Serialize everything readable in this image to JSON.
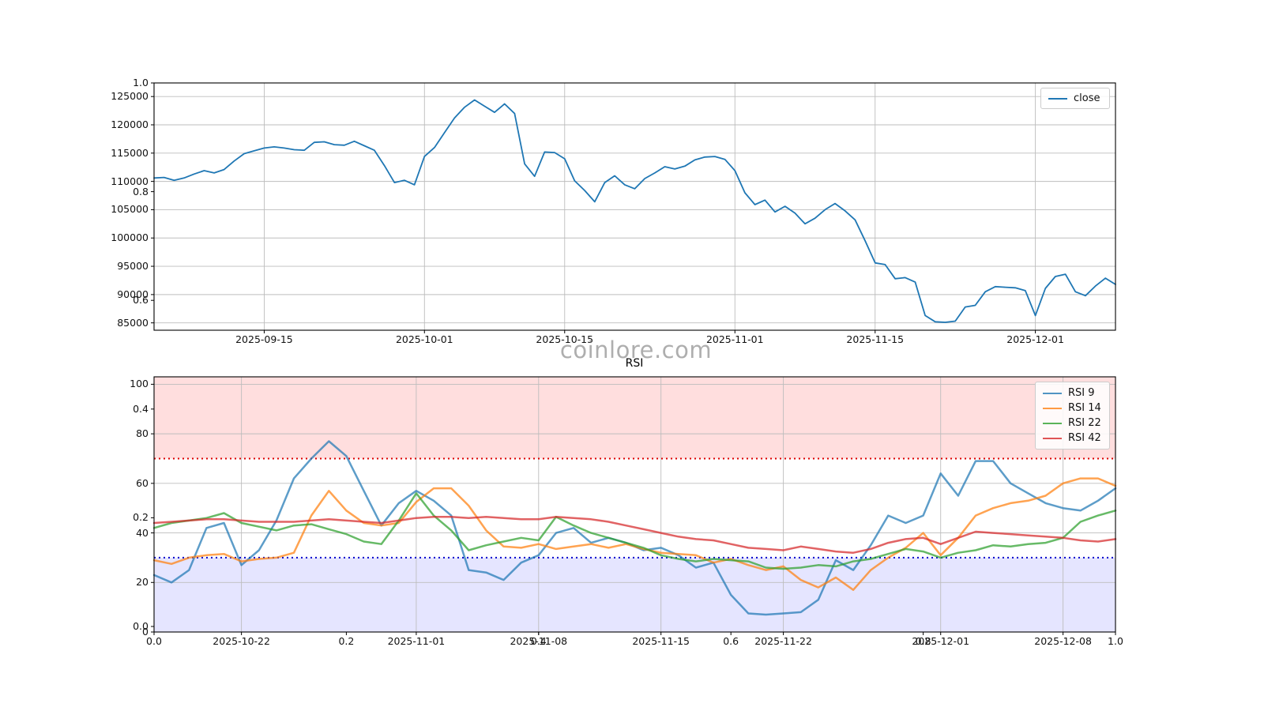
{
  "watermark": "coinlore.com",
  "price_chart": {
    "legend": {
      "close": "close"
    },
    "y_tick_labels": [
      "125000",
      "120000",
      "115000",
      "110000",
      "105000",
      "100000",
      "95000",
      "90000",
      "85000"
    ],
    "x_tick_labels": [
      "2025-09-15",
      "2025-10-01",
      "2025-10-15",
      "2025-11-01",
      "2025-11-15",
      "2025-12-01"
    ]
  },
  "rsi_chart": {
    "title": "RSI",
    "legend_labels": [
      "RSI 9",
      "RSI 14",
      "RSI 22",
      "RSI 42"
    ],
    "y_tick_labels": [
      "100",
      "80",
      "60",
      "40",
      "20",
      "0"
    ],
    "x_tick_labels": [
      "2025-10-22",
      "2025-11-01",
      "2025-11-08",
      "2025-11-15",
      "2025-11-22",
      "2025-12-01",
      "2025-12-08"
    ]
  },
  "overlay_axis": {
    "x_tick_labels": [
      "0.0",
      "0.2",
      "0.4",
      "0.6",
      "0.8",
      "1.0"
    ],
    "y_tick_labels": [
      "1.0",
      "0.8",
      "0.6",
      "0.4",
      "0.2",
      "0.0"
    ]
  },
  "colors": {
    "close_line": "#1f77b4",
    "rsi9": "#1f77b4",
    "rsi14": "#ff7f0e",
    "rsi22": "#2ca02c",
    "rsi42": "#d62728",
    "overbought_band": "rgba(255,0,0,0.13)",
    "oversold_band": "rgba(0,0,255,0.10)",
    "overbought_line": "#dd0000",
    "oversold_line": "#0000cc",
    "grid": "#bdbdbd"
  },
  "chart_data": [
    {
      "type": "line",
      "name": "close-price",
      "x_start": "2025-09-04",
      "x_end": "2025-12-09",
      "ylim": [
        83700,
        127400
      ],
      "y_ticks": [
        85000,
        90000,
        95000,
        100000,
        105000,
        110000,
        115000,
        120000,
        125000
      ],
      "x_ticks": [
        "2025-09-15",
        "2025-10-01",
        "2025-10-15",
        "2025-11-01",
        "2025-11-15",
        "2025-12-01"
      ],
      "grid": true,
      "legend_position": "upper right",
      "series": [
        {
          "name": "close",
          "color": "#1f77b4",
          "alpha": 1.0,
          "width": 1.8,
          "values": [
            110600,
            110700,
            110200,
            110600,
            111300,
            111900,
            111500,
            112100,
            113600,
            114900,
            115400,
            115900,
            116100,
            115900,
            115600,
            115500,
            116900,
            117000,
            116500,
            116400,
            117100,
            116300,
            115500,
            112800,
            109800,
            110200,
            109400,
            114400,
            116000,
            118600,
            121200,
            123100,
            124400,
            123300,
            122200,
            123700,
            122000,
            113100,
            110900,
            115200,
            115100,
            114000,
            110100,
            108400,
            106400,
            109800,
            111000,
            109400,
            108700,
            110500,
            111500,
            112600,
            112200,
            112700,
            113800,
            114300,
            114400,
            113900,
            111900,
            108000,
            105900,
            106700,
            104600,
            105600,
            104400,
            102500,
            103500,
            105000,
            106100,
            104800,
            103200,
            99500,
            95600,
            95300,
            92800,
            93000,
            92200,
            86300,
            85200,
            85100,
            85300,
            87800,
            88100,
            90500,
            91400,
            91300,
            91200,
            90700,
            86300,
            91100,
            93200,
            93600,
            90500,
            89800,
            91500,
            92900,
            91800
          ]
        }
      ]
    },
    {
      "type": "line",
      "name": "rsi",
      "title": "RSI",
      "x_start": "2025-10-17",
      "x_end": "2025-12-11",
      "ylim": [
        0,
        103
      ],
      "y_ticks": [
        0,
        20,
        40,
        60,
        80,
        100
      ],
      "x_ticks": [
        "2025-10-22",
        "2025-11-01",
        "2025-11-08",
        "2025-11-15",
        "2025-11-22",
        "2025-12-01",
        "2025-12-08"
      ],
      "grid": true,
      "legend_position": "upper right",
      "bands": [
        {
          "from": 70,
          "to": 103,
          "color": "rgba(255,0,0,0.13)",
          "meaning": "overbought"
        },
        {
          "from": 0,
          "to": 30,
          "color": "rgba(0,0,255,0.10)",
          "meaning": "oversold"
        }
      ],
      "hlines": [
        {
          "y": 70,
          "color": "#dd0000",
          "style": "dotted"
        },
        {
          "y": 30,
          "color": "#0000cc",
          "style": "dotted"
        }
      ],
      "series": [
        {
          "name": "RSI 9",
          "color": "#1f77b4",
          "alpha": 0.72,
          "width": 2.5,
          "values": [
            23,
            20,
            25,
            42,
            44,
            27,
            33,
            45,
            62,
            70,
            77,
            71,
            57,
            43,
            52,
            57,
            53,
            47,
            25,
            24,
            21,
            28,
            31,
            40,
            42,
            36,
            38,
            36,
            33,
            34,
            31,
            26,
            28,
            15,
            7.5,
            7,
            7.5,
            8,
            13,
            29,
            25,
            35,
            47,
            44,
            47,
            64,
            55,
            69,
            69,
            60,
            56,
            52,
            50,
            49,
            53,
            58
          ]
        },
        {
          "name": "RSI 14",
          "color": "#ff7f0e",
          "alpha": 0.72,
          "width": 2.5,
          "values": [
            29,
            27.5,
            30,
            31,
            31.5,
            28.5,
            29.5,
            30,
            32,
            47,
            57,
            49,
            44,
            43,
            44,
            52.5,
            58,
            58,
            51,
            41,
            34.5,
            34,
            35.5,
            33.5,
            34.5,
            35.5,
            34,
            35.5,
            33.5,
            32,
            31.5,
            31,
            28,
            29.5,
            27,
            25,
            26.5,
            21,
            18,
            22,
            17,
            25,
            30,
            34,
            40,
            31,
            38,
            47,
            50,
            52,
            53,
            55,
            60,
            62,
            62,
            59
          ]
        },
        {
          "name": "RSI 22",
          "color": "#2ca02c",
          "alpha": 0.72,
          "width": 2.5,
          "values": [
            42,
            44,
            45,
            46,
            48,
            44,
            42.5,
            41,
            43,
            43.5,
            41.5,
            39.5,
            36.5,
            35.5,
            45,
            56,
            47,
            41,
            33,
            35,
            36.5,
            38,
            37,
            46.5,
            43,
            40,
            38,
            36,
            34,
            31,
            29.5,
            28.5,
            29.5,
            29,
            28.5,
            26,
            25.5,
            26,
            27,
            26.5,
            28.5,
            29.5,
            31.5,
            33.5,
            32.5,
            30,
            32,
            33,
            35,
            34.5,
            35.5,
            36,
            38,
            44.5,
            47,
            49
          ]
        },
        {
          "name": "RSI 42",
          "color": "#d62728",
          "alpha": 0.72,
          "width": 2.5,
          "values": [
            44,
            44.5,
            45,
            45.5,
            45.5,
            45,
            44.5,
            44.5,
            44.5,
            45,
            45.5,
            45,
            44.5,
            44,
            45,
            46,
            46.5,
            46.5,
            46,
            46.5,
            46,
            45.5,
            45.5,
            46.5,
            46,
            45.5,
            44.5,
            43,
            41.5,
            40,
            38.5,
            37.5,
            37,
            35.5,
            34,
            33.5,
            33,
            34.5,
            33.5,
            32.5,
            32,
            33.5,
            36,
            37.5,
            38,
            35.5,
            38,
            40.5,
            40,
            39.5,
            39,
            38.5,
            38,
            37,
            36.5,
            37.5
          ]
        }
      ]
    }
  ]
}
